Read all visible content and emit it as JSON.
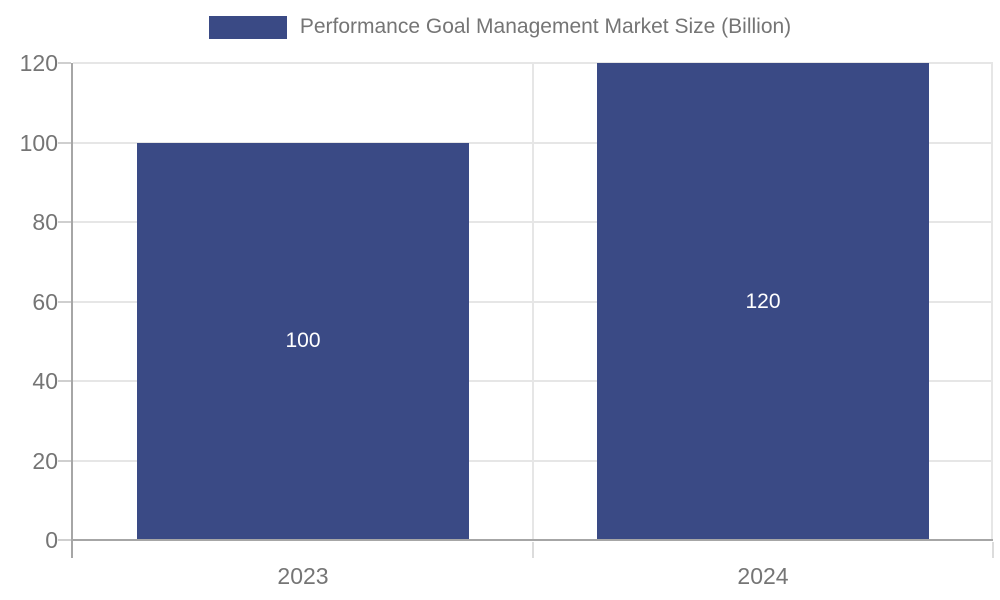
{
  "legend": {
    "label": "Performance Goal Management Market Size (Billion)"
  },
  "colors": {
    "bar": "#3A4A85",
    "grid": "#E6E6E6",
    "axis": "#A6A6A6",
    "tick_label": "#757575",
    "value_label": "#FFFFFF"
  },
  "chart_data": {
    "type": "bar",
    "title": "Performance Goal Management Market Size (Billion)",
    "categories": [
      "2023",
      "2024"
    ],
    "values": [
      100,
      120
    ],
    "value_labels": [
      "100",
      "120"
    ],
    "xlabel": "",
    "ylabel": "",
    "ylim": [
      0,
      120
    ],
    "yticks": [
      0,
      20,
      40,
      60,
      80,
      100,
      120
    ],
    "grid": true,
    "legend_position": "top-center"
  }
}
